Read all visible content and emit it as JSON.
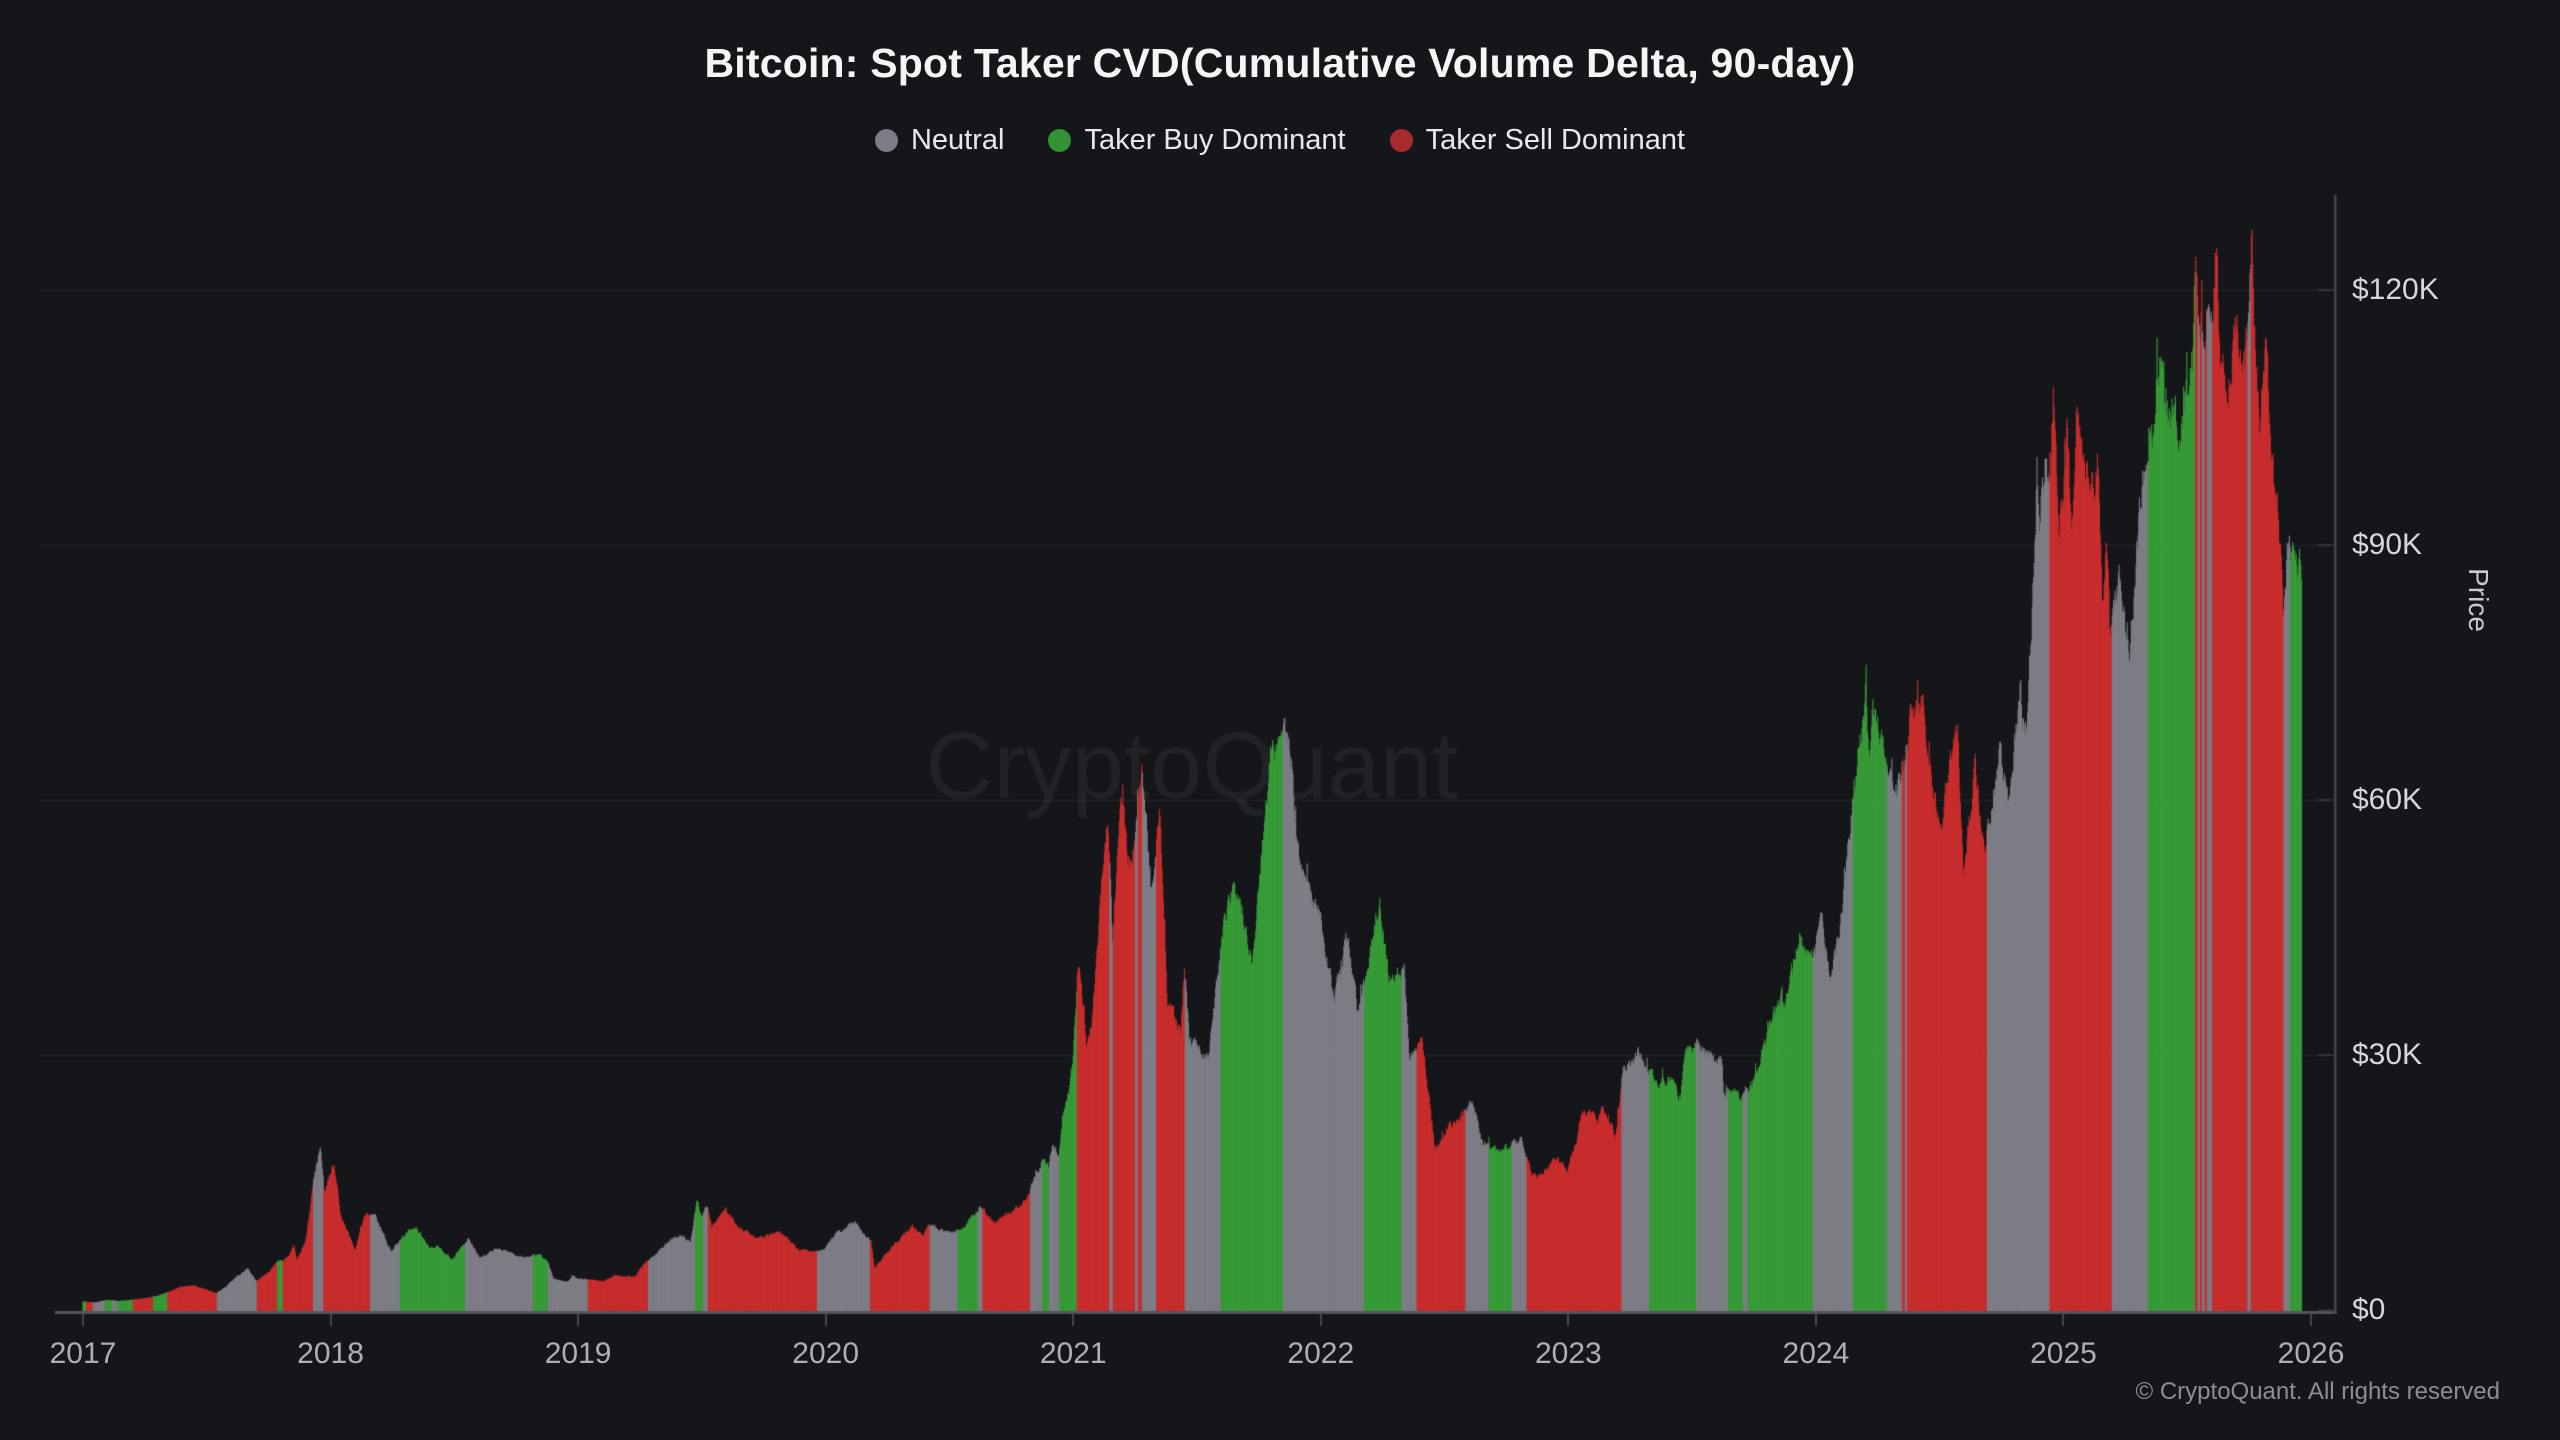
{
  "header": {
    "title": "Bitcoin: Spot Taker CVD(Cumulative Volume Delta, 90-day)"
  },
  "watermark": {
    "text": "CryptoQuant"
  },
  "footer": {
    "copyright": "© CryptoQuant. All rights reserved"
  },
  "colors": {
    "background": "#15161a",
    "bar_neutral": "#85848d",
    "bar_buy": "#3aa33a",
    "bar_sell": "#d32f2f",
    "legend_neutral": "#7d7c86",
    "legend_buy": "#339233",
    "legend_sell": "#a9292d",
    "baseline": "#53545b",
    "axis_line": "#44454c",
    "gridline": "rgba(255,255,255,0.05)"
  },
  "legend": {
    "items": [
      {
        "id": "neutral",
        "label": "Neutral"
      },
      {
        "id": "buy",
        "label": "Taker Buy Dominant"
      },
      {
        "id": "sell",
        "label": "Taker Sell Dominant"
      }
    ]
  },
  "chart_data": {
    "type": "bar",
    "title": "Bitcoin: Spot Taker CVD(Cumulative Volume Delta, 90-day)",
    "xlabel": "",
    "ylabel": "Price",
    "x_range": [
      2017.0,
      2025.962
    ],
    "y_range": [
      0,
      131000
    ],
    "grid": "horizontal",
    "legend_position": "top-center",
    "x_axis_ticks": [
      "2017",
      "2018",
      "2019",
      "2020",
      "2021",
      "2022",
      "2023",
      "2024",
      "2025",
      "2026"
    ],
    "y_axis_ticks": [
      {
        "label": "$120K",
        "value": 120000
      },
      {
        "label": "$90K",
        "value": 90000
      },
      {
        "label": "$60K",
        "value": 60000
      },
      {
        "label": "$30K",
        "value": 30000
      },
      {
        "label": "$0",
        "value": 0
      }
    ],
    "series_note": "Daily BTC price bars colored by 90-day spot taker CVD state",
    "price_points": [
      [
        2017.0,
        990
      ],
      [
        2017.05,
        900
      ],
      [
        2017.1,
        1190
      ],
      [
        2017.15,
        1060
      ],
      [
        2017.22,
        1250
      ],
      [
        2017.3,
        1650
      ],
      [
        2017.397,
        2700
      ],
      [
        2017.444,
        2950
      ],
      [
        2017.49,
        2450
      ],
      [
        2017.54,
        1980
      ],
      [
        2017.581,
        2850
      ],
      [
        2017.63,
        4150
      ],
      [
        2017.666,
        4850
      ],
      [
        2017.7,
        3400
      ],
      [
        2017.75,
        4400
      ],
      [
        2017.779,
        5500
      ],
      [
        2017.82,
        6100
      ],
      [
        2017.853,
        7400
      ],
      [
        2017.864,
        6000
      ],
      [
        2017.9,
        8100
      ],
      [
        2017.936,
        16000
      ],
      [
        2017.96,
        19300
      ],
      [
        2017.974,
        13900
      ],
      [
        2018.014,
        17100
      ],
      [
        2018.041,
        11200
      ],
      [
        2018.099,
        6950
      ],
      [
        2018.137,
        11200
      ],
      [
        2018.175,
        11400
      ],
      [
        2018.244,
        6900
      ],
      [
        2018.312,
        9300
      ],
      [
        2018.342,
        9850
      ],
      [
        2018.405,
        7100
      ],
      [
        2018.427,
        7650
      ],
      [
        2018.49,
        5900
      ],
      [
        2018.558,
        8400
      ],
      [
        2018.605,
        6150
      ],
      [
        2018.674,
        7300
      ],
      [
        2018.776,
        6250
      ],
      [
        2018.85,
        6450
      ],
      [
        2018.878,
        5600
      ],
      [
        2018.899,
        3700
      ],
      [
        2018.96,
        3250
      ],
      [
        2018.978,
        4050
      ],
      [
        2018.997,
        3700
      ],
      [
        2019.1,
        3380
      ],
      [
        2019.148,
        4100
      ],
      [
        2019.23,
        3920
      ],
      [
        2019.252,
        5000
      ],
      [
        2019.366,
        8000
      ],
      [
        2019.41,
        8850
      ],
      [
        2019.455,
        8000
      ],
      [
        2019.48,
        12900
      ],
      [
        2019.5,
        10800
      ],
      [
        2019.52,
        12400
      ],
      [
        2019.54,
        9700
      ],
      [
        2019.594,
        11900
      ],
      [
        2019.657,
        9500
      ],
      [
        2019.728,
        8450
      ],
      [
        2019.815,
        9200
      ],
      [
        2019.897,
        7000
      ],
      [
        2019.96,
        6900
      ],
      [
        2019.997,
        7200
      ],
      [
        2020.036,
        8800
      ],
      [
        2020.118,
        10300
      ],
      [
        2020.184,
        8000
      ],
      [
        2020.197,
        4900
      ],
      [
        2020.266,
        7300
      ],
      [
        2020.35,
        9900
      ],
      [
        2020.397,
        8800
      ],
      [
        2020.416,
        10200
      ],
      [
        2020.49,
        9050
      ],
      [
        2020.552,
        9400
      ],
      [
        2020.625,
        12300
      ],
      [
        2020.686,
        10200
      ],
      [
        2020.803,
        12800
      ],
      [
        2020.879,
        17800
      ],
      [
        2020.9,
        16900
      ],
      [
        2020.915,
        19700
      ],
      [
        2020.942,
        17900
      ],
      [
        2020.958,
        22800
      ],
      [
        2020.986,
        26400
      ],
      [
        2020.997,
        29000
      ],
      [
        2021.019,
        40600
      ],
      [
        2021.036,
        36800
      ],
      [
        2021.055,
        30900
      ],
      [
        2021.077,
        34300
      ],
      [
        2021.104,
        46400
      ],
      [
        2021.14,
        57500
      ],
      [
        2021.159,
        43600
      ],
      [
        2021.195,
        61200
      ],
      [
        2021.228,
        51400
      ],
      [
        2021.28,
        63500
      ],
      [
        2021.315,
        49200
      ],
      [
        2021.35,
        58800
      ],
      [
        2021.38,
        36800
      ],
      [
        2021.435,
        32600
      ],
      [
        2021.45,
        40500
      ],
      [
        2021.47,
        31700
      ],
      [
        2021.55,
        29900
      ],
      [
        2021.6,
        44600
      ],
      [
        2021.645,
        49300
      ],
      [
        2021.685,
        46800
      ],
      [
        2021.723,
        40800
      ],
      [
        2021.8,
        66000
      ],
      [
        2021.852,
        67500
      ],
      [
        2021.858,
        68700
      ],
      [
        2021.88,
        64300
      ],
      [
        2021.907,
        54800
      ],
      [
        2021.935,
        50100
      ],
      [
        2021.997,
        46200
      ],
      [
        2022.055,
        36500
      ],
      [
        2022.11,
        44500
      ],
      [
        2022.148,
        35100
      ],
      [
        2022.236,
        47400
      ],
      [
        2022.274,
        39600
      ],
      [
        2022.337,
        39700
      ],
      [
        2022.359,
        29100
      ],
      [
        2022.411,
        31700
      ],
      [
        2022.46,
        18900
      ],
      [
        2022.515,
        21600
      ],
      [
        2022.614,
        24400
      ],
      [
        2022.655,
        19700
      ],
      [
        2022.72,
        18600
      ],
      [
        2022.813,
        20100
      ],
      [
        2022.854,
        15900
      ],
      [
        2022.887,
        15800
      ],
      [
        2022.95,
        17800
      ],
      [
        2022.997,
        16550
      ],
      [
        2023.033,
        19900
      ],
      [
        2023.052,
        22700
      ],
      [
        2023.088,
        23700
      ],
      [
        2023.118,
        21800
      ],
      [
        2023.135,
        24600
      ],
      [
        2023.19,
        20200
      ],
      [
        2023.222,
        28100
      ],
      [
        2023.285,
        30500
      ],
      [
        2023.318,
        28300
      ],
      [
        2023.36,
        26800
      ],
      [
        2023.414,
        27200
      ],
      [
        2023.452,
        25100
      ],
      [
        2023.474,
        30700
      ],
      [
        2023.529,
        31400
      ],
      [
        2023.56,
        30000
      ],
      [
        2023.622,
        29000
      ],
      [
        2023.627,
        26100
      ],
      [
        2023.694,
        25200
      ],
      [
        2023.748,
        27000
      ],
      [
        2023.808,
        33100
      ],
      [
        2023.855,
        36700
      ],
      [
        2023.874,
        36000
      ],
      [
        2023.936,
        44200
      ],
      [
        2023.96,
        41500
      ],
      [
        2023.997,
        42300
      ],
      [
        2024.025,
        46700
      ],
      [
        2024.06,
        39000
      ],
      [
        2024.107,
        47100
      ],
      [
        2024.159,
        62500
      ],
      [
        2024.2,
        73100
      ],
      [
        2024.216,
        65300
      ],
      [
        2024.23,
        70800
      ],
      [
        2024.282,
        65700
      ],
      [
        2024.328,
        60600
      ],
      [
        2024.369,
        66300
      ],
      [
        2024.385,
        71400
      ],
      [
        2024.432,
        71100
      ],
      [
        2024.478,
        59900
      ],
      [
        2024.508,
        56700
      ],
      [
        2024.555,
        67600
      ],
      [
        2024.574,
        68300
      ],
      [
        2024.592,
        53900
      ],
      [
        2024.596,
        50600
      ],
      [
        2024.643,
        64100
      ],
      [
        2024.682,
        53900
      ],
      [
        2024.74,
        65700
      ],
      [
        2024.775,
        60300
      ],
      [
        2024.827,
        72300
      ],
      [
        2024.843,
        67900
      ],
      [
        2024.853,
        69400
      ],
      [
        2024.862,
        75600
      ],
      [
        2024.885,
        88700
      ],
      [
        2024.893,
        98300
      ],
      [
        2024.904,
        91900
      ],
      [
        2024.928,
        101100
      ],
      [
        2024.942,
        96600
      ],
      [
        2024.961,
        106100
      ],
      [
        2024.983,
        92600
      ],
      [
        2024.997,
        93400
      ],
      [
        2025.014,
        102300
      ],
      [
        2025.033,
        91200
      ],
      [
        2025.055,
        108800
      ],
      [
        2025.071,
        102100
      ],
      [
        2025.09,
        97800
      ],
      [
        2025.14,
        98300
      ],
      [
        2025.156,
        84700
      ],
      [
        2025.175,
        90600
      ],
      [
        2025.189,
        77800
      ],
      [
        2025.225,
        87300
      ],
      [
        2025.247,
        82400
      ],
      [
        2025.266,
        75900
      ],
      [
        2025.307,
        93800
      ],
      [
        2025.348,
        104000
      ],
      [
        2025.365,
        102700
      ],
      [
        2025.386,
        111700
      ],
      [
        2025.425,
        104600
      ],
      [
        2025.45,
        108000
      ],
      [
        2025.471,
        101500
      ],
      [
        2025.493,
        107100
      ],
      [
        2025.521,
        111300
      ],
      [
        2025.532,
        122600
      ],
      [
        2025.545,
        117500
      ],
      [
        2025.562,
        115800
      ],
      [
        2025.58,
        117400
      ],
      [
        2025.6,
        116500
      ],
      [
        2025.617,
        124300
      ],
      [
        2025.633,
        112800
      ],
      [
        2025.666,
        107800
      ],
      [
        2025.696,
        115800
      ],
      [
        2025.732,
        109000
      ],
      [
        2025.762,
        125900
      ],
      [
        2025.78,
        108000
      ],
      [
        2025.792,
        104500
      ],
      [
        2025.819,
        113500
      ],
      [
        2025.841,
        99500
      ],
      [
        2025.868,
        94500
      ],
      [
        2025.888,
        82000
      ],
      [
        2025.907,
        91300
      ],
      [
        2025.937,
        86500
      ],
      [
        2025.955,
        87500
      ]
    ],
    "state_segments": [
      [
        2017.0,
        2017.012,
        "buy"
      ],
      [
        2017.012,
        2017.04,
        "sell"
      ],
      [
        2017.04,
        2017.09,
        "neutral"
      ],
      [
        2017.09,
        2017.118,
        "buy"
      ],
      [
        2017.118,
        2017.138,
        "neutral"
      ],
      [
        2017.138,
        2017.202,
        "buy"
      ],
      [
        2017.202,
        2017.283,
        "sell"
      ],
      [
        2017.283,
        2017.34,
        "buy"
      ],
      [
        2017.34,
        2017.542,
        "sell"
      ],
      [
        2017.542,
        2017.703,
        "neutral"
      ],
      [
        2017.703,
        2017.784,
        "sell"
      ],
      [
        2017.784,
        2017.808,
        "buy"
      ],
      [
        2017.808,
        2017.929,
        "sell"
      ],
      [
        2017.929,
        2017.97,
        "neutral"
      ],
      [
        2017.97,
        2018.16,
        "sell"
      ],
      [
        2018.16,
        2018.281,
        "neutral"
      ],
      [
        2018.281,
        2018.543,
        "buy"
      ],
      [
        2018.543,
        2018.818,
        "neutral"
      ],
      [
        2018.818,
        2018.878,
        "buy"
      ],
      [
        2018.878,
        2019.04,
        "neutral"
      ],
      [
        2019.04,
        2019.283,
        "sell"
      ],
      [
        2019.283,
        2019.472,
        "neutral"
      ],
      [
        2019.472,
        2019.505,
        "buy"
      ],
      [
        2019.505,
        2019.525,
        "neutral"
      ],
      [
        2019.525,
        2019.965,
        "sell"
      ],
      [
        2019.965,
        2020.179,
        "neutral"
      ],
      [
        2020.179,
        2020.421,
        "sell"
      ],
      [
        2020.421,
        2020.534,
        "neutral"
      ],
      [
        2020.534,
        2020.615,
        "buy"
      ],
      [
        2020.615,
        2020.635,
        "neutral"
      ],
      [
        2020.635,
        2020.825,
        "sell"
      ],
      [
        2020.825,
        2020.874,
        "neutral"
      ],
      [
        2020.874,
        2020.903,
        "buy"
      ],
      [
        2020.903,
        2020.945,
        "neutral"
      ],
      [
        2020.945,
        2021.016,
        "buy"
      ],
      [
        2021.016,
        2021.147,
        "sell"
      ],
      [
        2021.147,
        2021.159,
        "neutral"
      ],
      [
        2021.159,
        2021.25,
        "sell"
      ],
      [
        2021.25,
        2021.262,
        "neutral"
      ],
      [
        2021.262,
        2021.278,
        "sell"
      ],
      [
        2021.278,
        2021.335,
        "neutral"
      ],
      [
        2021.335,
        2021.452,
        "sell"
      ],
      [
        2021.452,
        2021.597,
        "neutral"
      ],
      [
        2021.597,
        2021.849,
        "buy"
      ],
      [
        2021.849,
        2022.174,
        "neutral"
      ],
      [
        2022.174,
        2022.327,
        "buy"
      ],
      [
        2022.327,
        2022.388,
        "neutral"
      ],
      [
        2022.388,
        2022.586,
        "sell"
      ],
      [
        2022.586,
        2022.679,
        "neutral"
      ],
      [
        2022.679,
        2022.772,
        "buy"
      ],
      [
        2022.772,
        2022.832,
        "neutral"
      ],
      [
        2022.832,
        2023.214,
        "sell"
      ],
      [
        2023.214,
        2023.327,
        "neutral"
      ],
      [
        2023.327,
        2023.517,
        "buy"
      ],
      [
        2023.517,
        2023.646,
        "neutral"
      ],
      [
        2023.646,
        2023.706,
        "buy"
      ],
      [
        2023.706,
        2023.726,
        "neutral"
      ],
      [
        2023.726,
        2023.988,
        "buy"
      ],
      [
        2023.988,
        2024.15,
        "neutral"
      ],
      [
        2024.15,
        2024.287,
        "buy"
      ],
      [
        2024.287,
        2024.348,
        "neutral"
      ],
      [
        2024.348,
        2024.36,
        "sell"
      ],
      [
        2024.36,
        2024.368,
        "neutral"
      ],
      [
        2024.368,
        2024.691,
        "sell"
      ],
      [
        2024.691,
        2024.945,
        "neutral"
      ],
      [
        2024.945,
        2025.196,
        "sell"
      ],
      [
        2025.196,
        2025.342,
        "neutral"
      ],
      [
        2025.342,
        2025.532,
        "buy"
      ],
      [
        2025.532,
        2025.544,
        "sell"
      ],
      [
        2025.544,
        2025.552,
        "neutral"
      ],
      [
        2025.552,
        2025.56,
        "sell"
      ],
      [
        2025.56,
        2025.572,
        "neutral"
      ],
      [
        2025.572,
        2025.58,
        "sell"
      ],
      [
        2025.58,
        2025.6,
        "neutral"
      ],
      [
        2025.6,
        2025.745,
        "sell"
      ],
      [
        2025.745,
        2025.757,
        "neutral"
      ],
      [
        2025.757,
        2025.888,
        "sell"
      ],
      [
        2025.888,
        2025.916,
        "neutral"
      ],
      [
        2025.916,
        2025.962,
        "buy"
      ]
    ]
  }
}
